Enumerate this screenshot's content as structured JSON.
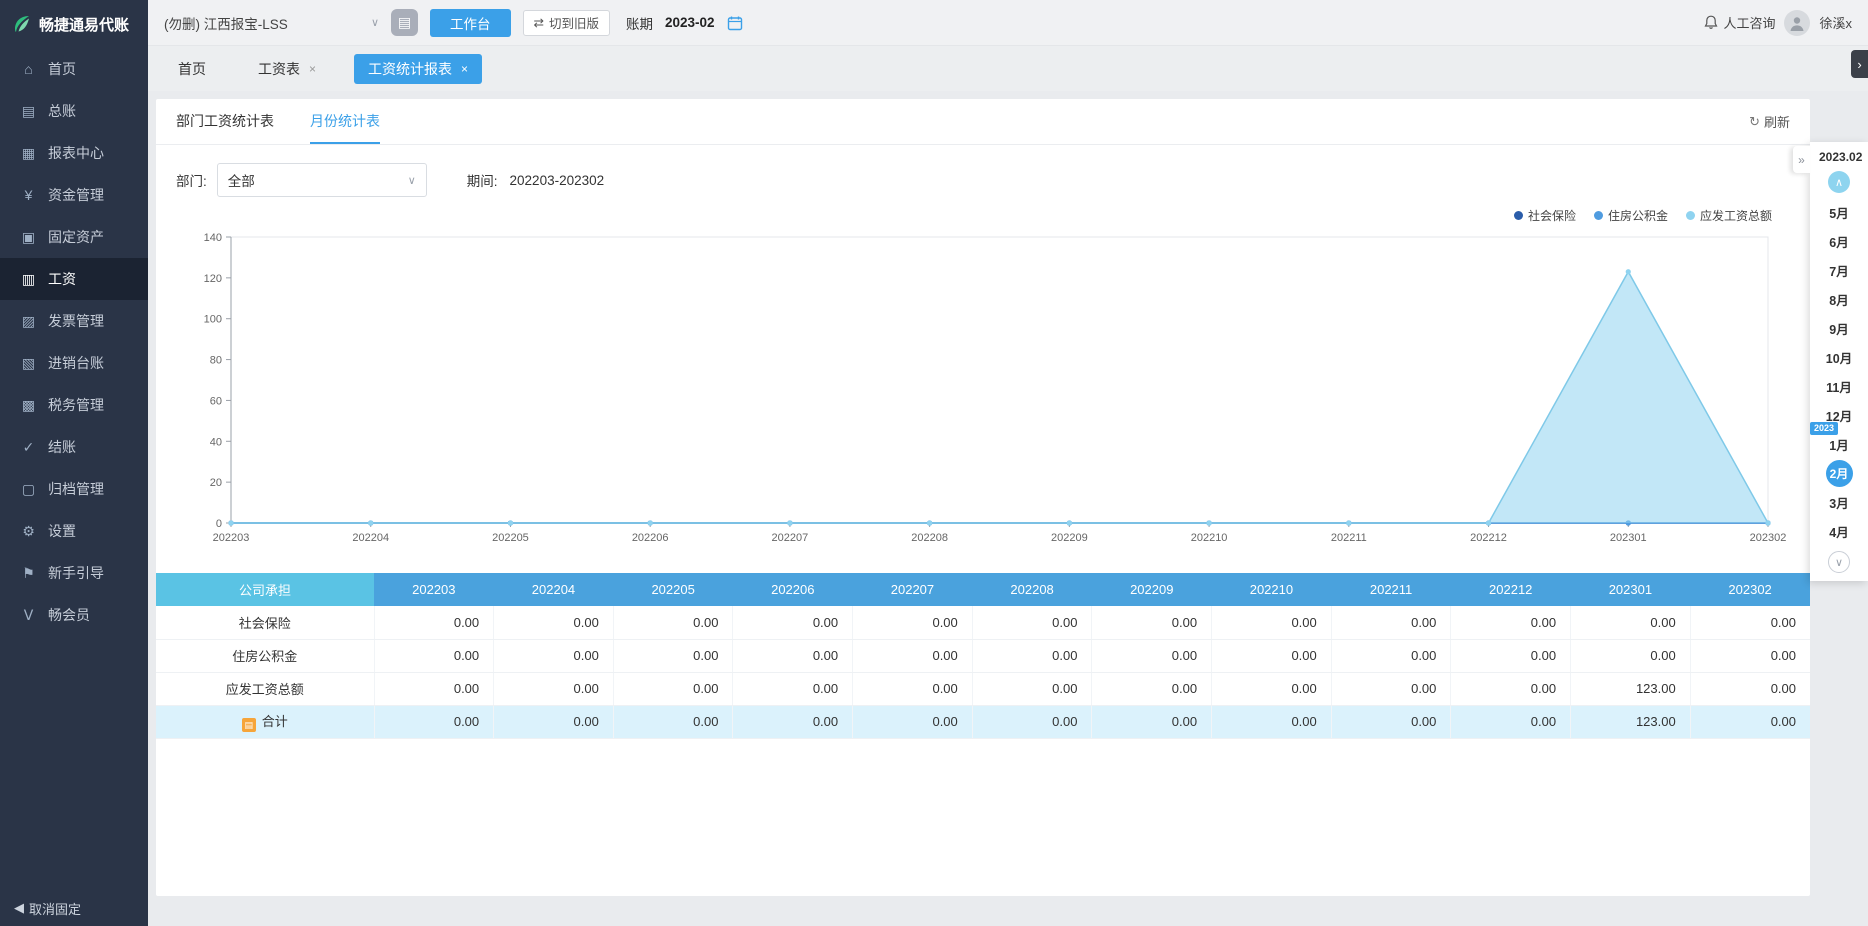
{
  "app": {
    "logo_text": "畅捷通易代账",
    "accent": "#3ba0e8"
  },
  "sidebar": {
    "items": [
      {
        "id": "home",
        "label": "首页",
        "icon": "home-icon",
        "glyph": "⌂"
      },
      {
        "id": "general-ledger",
        "label": "总账",
        "icon": "general-ledger-icon",
        "glyph": "▤"
      },
      {
        "id": "report-center",
        "label": "报表中心",
        "icon": "report-center-icon",
        "glyph": "▦"
      },
      {
        "id": "funds",
        "label": "资金管理",
        "icon": "funds-icon",
        "glyph": "¥"
      },
      {
        "id": "fixed-assets",
        "label": "固定资产",
        "icon": "fixed-assets-icon",
        "glyph": "▣"
      },
      {
        "id": "salary",
        "label": "工资",
        "icon": "salary-icon",
        "glyph": "▥",
        "active": true
      },
      {
        "id": "invoice",
        "label": "发票管理",
        "icon": "invoice-icon",
        "glyph": "▨"
      },
      {
        "id": "purchase-sales",
        "label": "进销台账",
        "icon": "purchase-sales-icon",
        "glyph": "▧"
      },
      {
        "id": "tax",
        "label": "税务管理",
        "icon": "tax-icon",
        "glyph": "▩"
      },
      {
        "id": "closing",
        "label": "结账",
        "icon": "closing-icon",
        "glyph": "✓"
      },
      {
        "id": "archive",
        "label": "归档管理",
        "icon": "archive-icon",
        "glyph": "▢"
      },
      {
        "id": "settings",
        "label": "设置",
        "icon": "settings-icon",
        "glyph": "⚙"
      },
      {
        "id": "guide",
        "label": "新手引导",
        "icon": "guide-icon",
        "glyph": "⚑"
      },
      {
        "id": "member",
        "label": "畅会员",
        "icon": "member-icon",
        "glyph": "Ⅴ"
      }
    ],
    "unpin_label": "取消固定",
    "unpin_glyph": "◀"
  },
  "topbar": {
    "company": "(勿删) 江西报宝-LSS",
    "workbench": "工作台",
    "switch_old": "切到旧版",
    "period_label": "账期",
    "period_value": "2023-02",
    "consult": "人工咨询",
    "user": "徐溪x",
    "side_toggle_glyph": "›"
  },
  "tabbar": {
    "tabs": [
      {
        "id": "home",
        "label": "首页"
      },
      {
        "id": "salary-sheet",
        "label": "工资表",
        "closable": true
      },
      {
        "id": "salary-report",
        "label": "工资统计报表",
        "closable": true,
        "active": true
      }
    ],
    "close_glyph": "×"
  },
  "content": {
    "subtabs": [
      {
        "id": "dept-salary-stats",
        "label": "部门工资统计表"
      },
      {
        "id": "month-stats",
        "label": "月份统计表",
        "active": true
      }
    ],
    "refresh_label": "刷新",
    "refresh_glyph": "↻",
    "dept_label": "部门:",
    "dept_value": "全部",
    "range_label": "期间:",
    "range_value": "202203-202302"
  },
  "chart_data": {
    "type": "area",
    "title": "",
    "xlabel": "",
    "ylabel": "",
    "categories": [
      "202203",
      "202204",
      "202205",
      "202206",
      "202207",
      "202208",
      "202209",
      "202210",
      "202211",
      "202212",
      "202301",
      "202302"
    ],
    "series": [
      {
        "name": "社会保险",
        "color": "#2b5daa",
        "values": [
          0,
          0,
          0,
          0,
          0,
          0,
          0,
          0,
          0,
          0,
          0,
          0
        ]
      },
      {
        "name": "住房公积金",
        "color": "#4f9ce0",
        "values": [
          0,
          0,
          0,
          0,
          0,
          0,
          0,
          0,
          0,
          0,
          0,
          0
        ]
      },
      {
        "name": "应发工资总额",
        "color": "#8fd3f0",
        "fill": "rgba(143,211,240,0.55)",
        "stroke": "#7fc9e8",
        "values": [
          0,
          0,
          0,
          0,
          0,
          0,
          0,
          0,
          0,
          0,
          123,
          0
        ]
      }
    ],
    "ylim": [
      0,
      140
    ],
    "yticks": [
      0,
      20,
      40,
      60,
      80,
      100,
      120,
      140
    ],
    "grid": false,
    "legend_position": "top-right"
  },
  "table": {
    "corner": "公司承担",
    "columns": [
      "202203",
      "202204",
      "202205",
      "202206",
      "202207",
      "202208",
      "202209",
      "202210",
      "202211",
      "202212",
      "202301",
      "202302"
    ],
    "rows": [
      {
        "label": "社会保险",
        "values": [
          "0.00",
          "0.00",
          "0.00",
          "0.00",
          "0.00",
          "0.00",
          "0.00",
          "0.00",
          "0.00",
          "0.00",
          "0.00",
          "0.00"
        ]
      },
      {
        "label": "住房公积金",
        "values": [
          "0.00",
          "0.00",
          "0.00",
          "0.00",
          "0.00",
          "0.00",
          "0.00",
          "0.00",
          "0.00",
          "0.00",
          "0.00",
          "0.00"
        ]
      },
      {
        "label": "应发工资总额",
        "values": [
          "0.00",
          "0.00",
          "0.00",
          "0.00",
          "0.00",
          "0.00",
          "0.00",
          "0.00",
          "0.00",
          "0.00",
          "123.00",
          "0.00"
        ]
      },
      {
        "label": "合计",
        "total": true,
        "values": [
          "0.00",
          "0.00",
          "0.00",
          "0.00",
          "0.00",
          "0.00",
          "0.00",
          "0.00",
          "0.00",
          "0.00",
          "123.00",
          "0.00"
        ]
      }
    ]
  },
  "month_panel": {
    "title": "2023.02",
    "collapse_glyph": "»",
    "up_glyph": "∧",
    "down_glyph": "∨",
    "year_badge": "2023",
    "year_badge_before": "1月",
    "months": [
      "5月",
      "6月",
      "7月",
      "8月",
      "9月",
      "10月",
      "11月",
      "12月",
      "1月",
      "2月",
      "3月",
      "4月"
    ],
    "active_month": "2月"
  }
}
